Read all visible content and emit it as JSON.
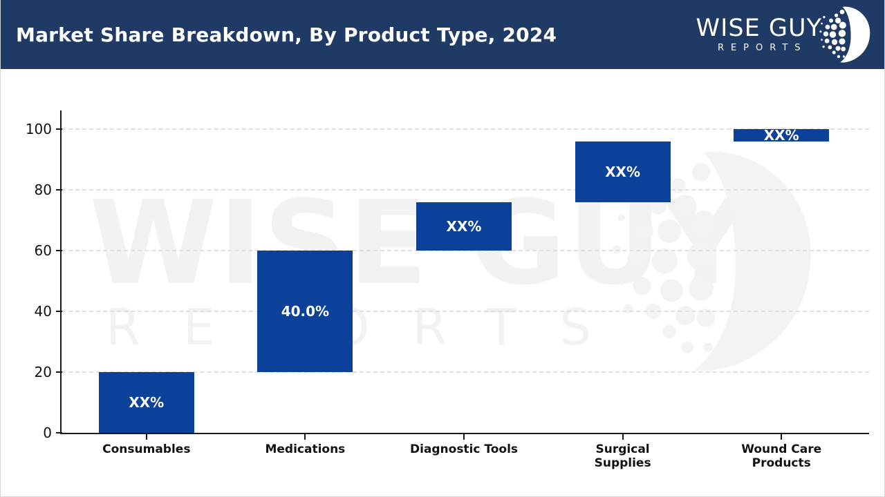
{
  "header": {
    "title": "Market Share Breakdown, By Product Type, 2024",
    "logo": {
      "name": "WISE GUY",
      "tagline": "REPORTS"
    }
  },
  "watermark": {
    "name": "WISE GUY",
    "tagline": "REPORTS"
  },
  "colors": {
    "header_bg": "#203a66",
    "bar": "#0b4199",
    "bar_label": "#ffffff",
    "axis": "#1a1a1a",
    "grid": "#e0e0e0",
    "tick_label": "#111111",
    "watermark": "#f2f2f5"
  },
  "chart_data": {
    "type": "bar",
    "variant": "waterfall",
    "title": "Market Share Breakdown, By Product Type, 2024",
    "categories": [
      "Consumables",
      "Medications",
      "Diagnostic Tools",
      "Surgical Supplies",
      "Wound Care Products"
    ],
    "segments": [
      {
        "category": "Consumables",
        "start": 0,
        "end": 20,
        "value": 20,
        "label": "XX%"
      },
      {
        "category": "Medications",
        "start": 20,
        "end": 60,
        "value": 40,
        "label": "40.0%"
      },
      {
        "category": "Diagnostic Tools",
        "start": 60,
        "end": 76,
        "value": 16,
        "label": "XX%"
      },
      {
        "category": "Surgical Supplies",
        "start": 76,
        "end": 96,
        "value": 20,
        "label": "XX%"
      },
      {
        "category": "Wound Care Products",
        "start": 96,
        "end": 100,
        "value": 4,
        "label": "XX%"
      }
    ],
    "y_ticks": [
      0,
      20,
      40,
      60,
      80,
      100
    ],
    "ylim": [
      0,
      106
    ],
    "xlabel": "",
    "ylabel": "",
    "grid": "horizontal-dashed",
    "legend": "none"
  }
}
